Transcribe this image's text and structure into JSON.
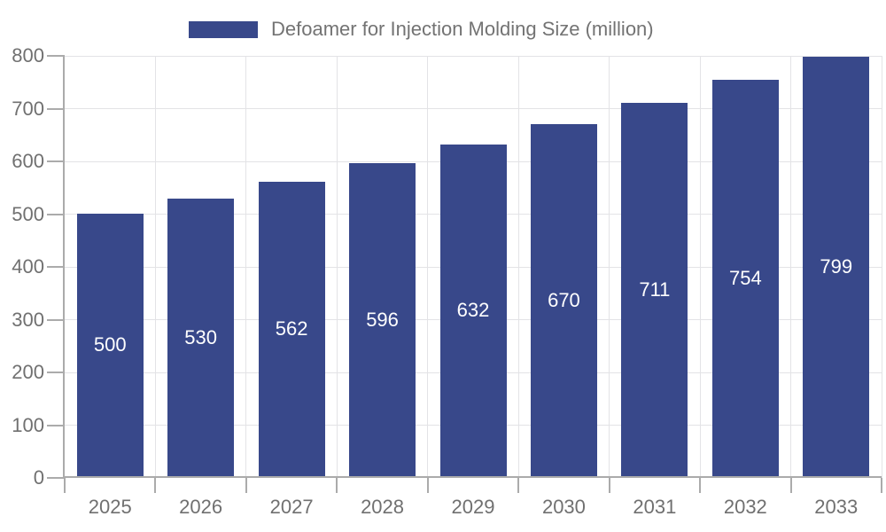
{
  "legend": {
    "series_label": "Defoamer for Injection Molding Size (million)"
  },
  "chart_data": {
    "type": "bar",
    "title": "Defoamer for Injection Molding Size (million)",
    "categories": [
      "2025",
      "2026",
      "2027",
      "2028",
      "2029",
      "2030",
      "2031",
      "2032",
      "2033"
    ],
    "values": [
      500,
      530,
      562,
      596,
      632,
      670,
      711,
      754,
      799
    ],
    "xlabel": "",
    "ylabel": "",
    "ylim": [
      0,
      800
    ],
    "yticks": [
      0,
      100,
      200,
      300,
      400,
      500,
      600,
      700,
      800
    ],
    "grid": true,
    "legend_position": "top",
    "bar_color": "#38488A",
    "bar_label_color": "#ffffff",
    "grid_color": "#E3E3E6",
    "axis_color": "#ABABAB",
    "tick_text_color": "#707070",
    "title_color": "#737373"
  }
}
